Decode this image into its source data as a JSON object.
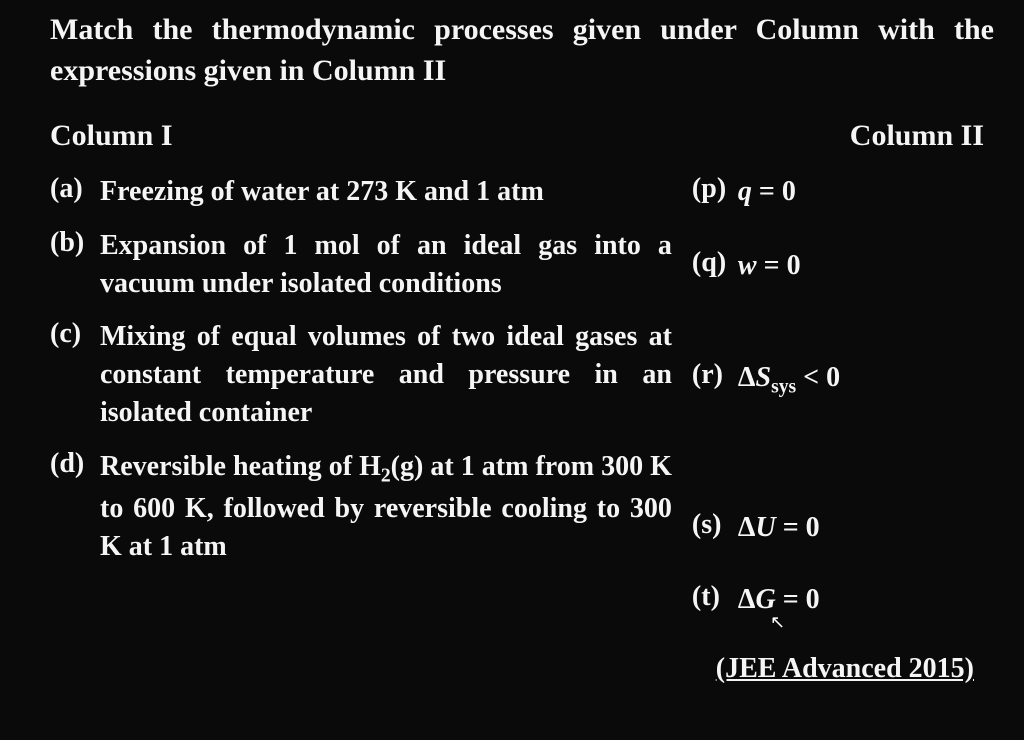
{
  "stem": "Match the thermodynamic processes given under Column with the expressions given in Column II",
  "column1": {
    "header": "Column I",
    "items": [
      {
        "label": "(a)",
        "text": "Freezing of water at 273 K and 1 atm"
      },
      {
        "label": "(b)",
        "text": "Expansion of 1 mol of an ideal gas into a vacuum under isolated conditions"
      },
      {
        "label": "(c)",
        "text": "Mixing of equal volumes of two ideal gases at constant temperature and pressure in an isolated container"
      },
      {
        "label": "(d)",
        "text_html": "Reversible heating of H<span class=\"sub\">2</span>(g) at 1 atm from 300 K to 600 K, followed by reversible cooling to 300 K at 1 atm"
      }
    ]
  },
  "column2": {
    "header": "Column II",
    "items": [
      {
        "label": "(p)",
        "expr_html": "q <span class=\"upright\">= 0</span>"
      },
      {
        "label": "(q)",
        "expr_html": "w <span class=\"upright\">= 0</span>"
      },
      {
        "label": "(r)",
        "expr_html": "<span class=\"upright\">Δ</span>S<span class=\"sub\">sys</span> <span class=\"upright\">&lt; 0</span>"
      },
      {
        "label": "(s)",
        "expr_html": "<span class=\"upright\">Δ</span>U <span class=\"upright\">= 0</span>"
      },
      {
        "label": "(t)",
        "expr_html": "<span class=\"upright\">Δ</span>G <span class=\"upright\">= 0</span>"
      }
    ]
  },
  "source": "(JEE Advanced 2015)",
  "row_heights": {
    "a": 58,
    "b": 96,
    "c": 134,
    "d": 134
  }
}
